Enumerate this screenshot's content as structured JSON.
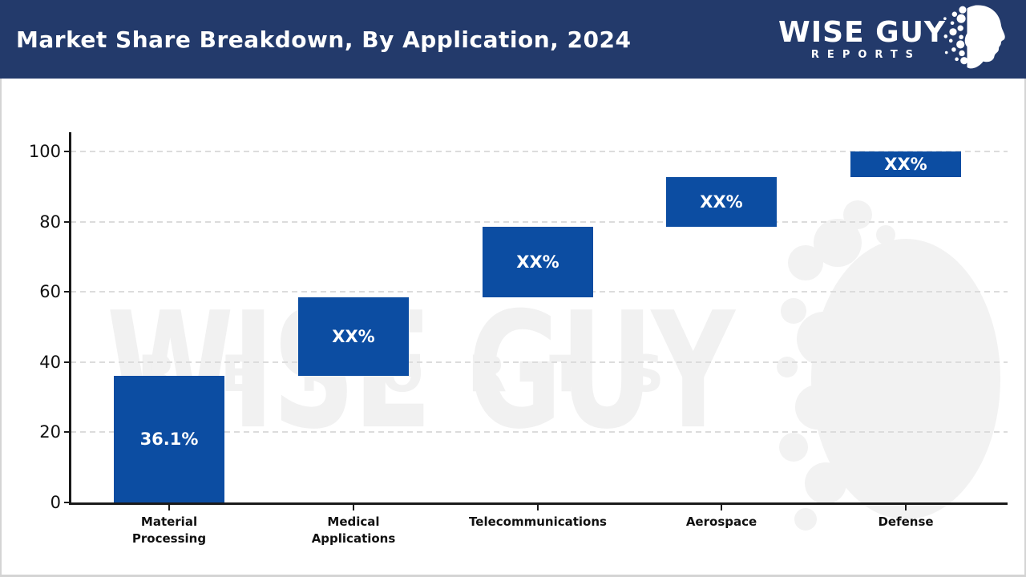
{
  "header": {
    "title": "Market Share Breakdown, By Application, 2024",
    "background_color": "#233a6b",
    "logo": {
      "line1": "WISE GUY",
      "line2": "REPORTS"
    }
  },
  "watermark": {
    "line1": "WISE GUY",
    "line2": "REPORTS"
  },
  "chart_data": {
    "type": "bar",
    "subtype": "waterfall-stacked-share",
    "title": "Market Share Breakdown, By Application, 2024",
    "categories": [
      "Material Processing",
      "Medical Applications",
      "Telecommunications",
      "Aerospace",
      "Defense"
    ],
    "category_lines": [
      [
        "Material",
        "Processing"
      ],
      [
        "Medical",
        "Applications"
      ],
      [
        "Telecommunications"
      ],
      [
        "Aerospace"
      ],
      [
        "Defense"
      ]
    ],
    "segments": [
      {
        "category": "Material Processing",
        "start": 0,
        "end": 36.1,
        "label": "36.1%"
      },
      {
        "category": "Medical Applications",
        "start": 36.1,
        "end": 58.5,
        "label": "XX%"
      },
      {
        "category": "Telecommunications",
        "start": 58.5,
        "end": 78.5,
        "label": "XX%"
      },
      {
        "category": "Aerospace",
        "start": 78.5,
        "end": 92.8,
        "label": "XX%"
      },
      {
        "category": "Defense",
        "start": 92.8,
        "end": 100,
        "label": "XX%"
      }
    ],
    "yticks": [
      0,
      20,
      40,
      60,
      80,
      100
    ],
    "ylim": [
      0,
      105
    ],
    "xlabel": "",
    "ylabel": "",
    "bar_color": "#0c4da2",
    "grid": "horizontal-dashed",
    "grid_color": "#dcdcdc",
    "legend": "none"
  }
}
